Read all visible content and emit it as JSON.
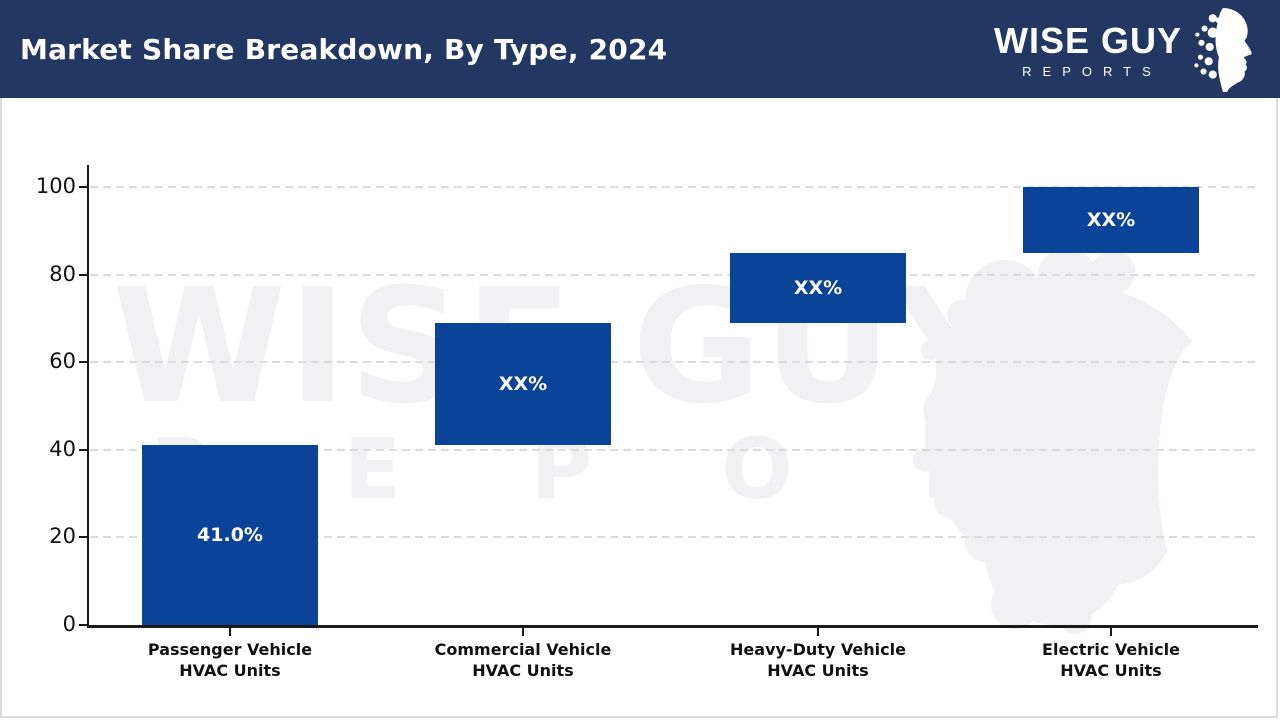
{
  "header": {
    "title": "Market Share Breakdown, By Type, 2024",
    "background_color": "#223862",
    "logo": {
      "line1": "WISE GUY",
      "line2": "REPORTS"
    }
  },
  "watermark": {
    "line1": "WISE GUY",
    "line2": "REPORTS"
  },
  "chart_data": {
    "type": "bar",
    "variant": "waterfall",
    "title": "Market Share Breakdown, By Type, 2024",
    "categories": [
      [
        "Passenger Vehicle",
        "HVAC Units"
      ],
      [
        "Commercial Vehicle",
        "HVAC Units"
      ],
      [
        "Heavy-Duty Vehicle",
        "HVAC Units"
      ],
      [
        "Electric Vehicle",
        "HVAC Units"
      ]
    ],
    "bars": [
      {
        "start": 0,
        "end": 41,
        "value_label": "41.0%"
      },
      {
        "start": 41,
        "end": 69,
        "value_label": "XX%"
      },
      {
        "start": 69,
        "end": 85,
        "value_label": "XX%"
      },
      {
        "start": 85,
        "end": 100,
        "value_label": "XX%"
      }
    ],
    "yticks": [
      0,
      20,
      40,
      60,
      80,
      100
    ],
    "ylim": [
      0,
      100
    ],
    "xlabel": "",
    "ylabel": "",
    "bar_color": "#0a4397",
    "grid": "horizontal-dashed",
    "legend": "none"
  }
}
